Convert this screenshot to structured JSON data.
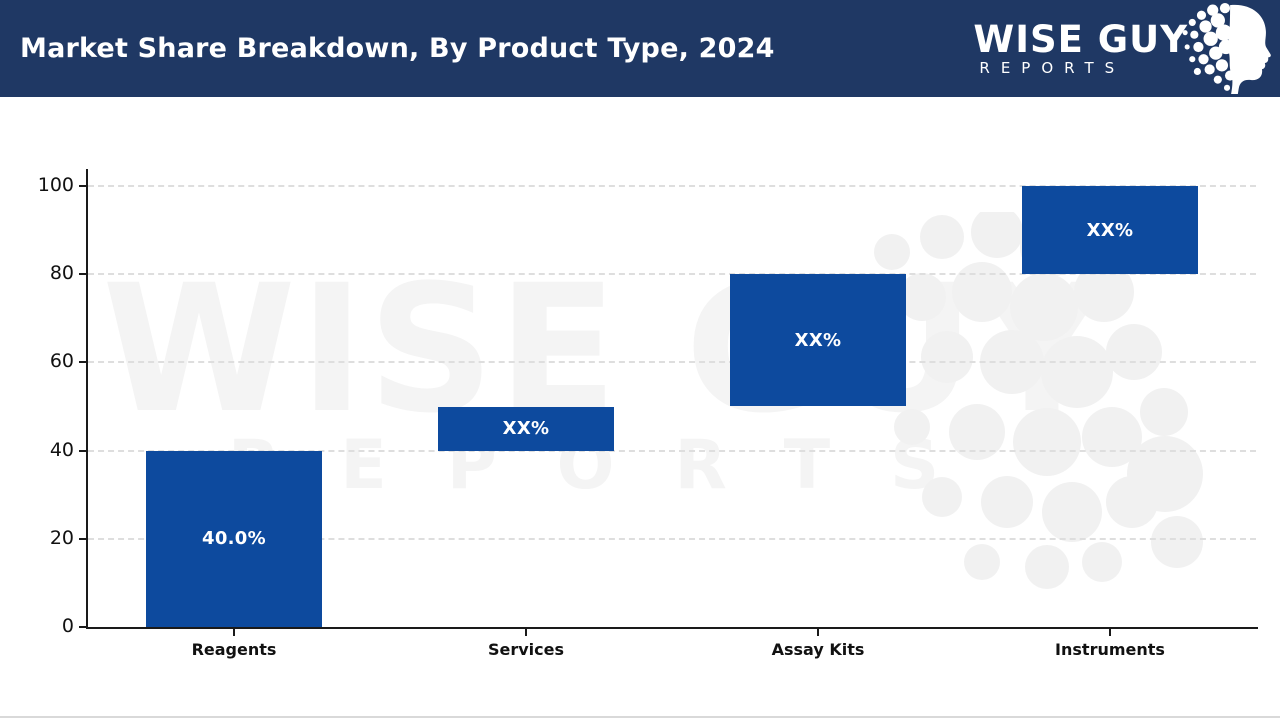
{
  "header": {
    "title": "Market Share Breakdown, By Product Type, 2024"
  },
  "brand": {
    "name_line1": "WISE GUY",
    "name_line2": "REPORTS",
    "head_icon": "dotted-face-profile"
  },
  "watermark": {
    "line1": "WISE GUY",
    "line2": "REPORTS"
  },
  "chart_data": {
    "type": "bar",
    "subtype": "waterfall",
    "title": "Market Share Breakdown, By Product Type, 2024",
    "categories": [
      "Reagents",
      "Services",
      "Assay Kits",
      "Instruments"
    ],
    "segments": [
      {
        "category": "Reagents",
        "start": 0,
        "end": 40,
        "label": "40.0%"
      },
      {
        "category": "Services",
        "start": 40,
        "end": 50,
        "label": "XX%"
      },
      {
        "category": "Assay Kits",
        "start": 50,
        "end": 80,
        "label": "XX%"
      },
      {
        "category": "Instruments",
        "start": 80,
        "end": 100,
        "label": "XX%"
      }
    ],
    "yticks": [
      0,
      20,
      40,
      60,
      80,
      100
    ],
    "ylim": [
      0,
      100
    ],
    "xlabel": "",
    "ylabel": "",
    "grid": "dashed-horizontal",
    "legend": "none",
    "bar_color": "#0d4a9e",
    "bar_label_color": "#ffffff",
    "axis_color": "#1a1a1a",
    "header_color": "#1f3864"
  }
}
